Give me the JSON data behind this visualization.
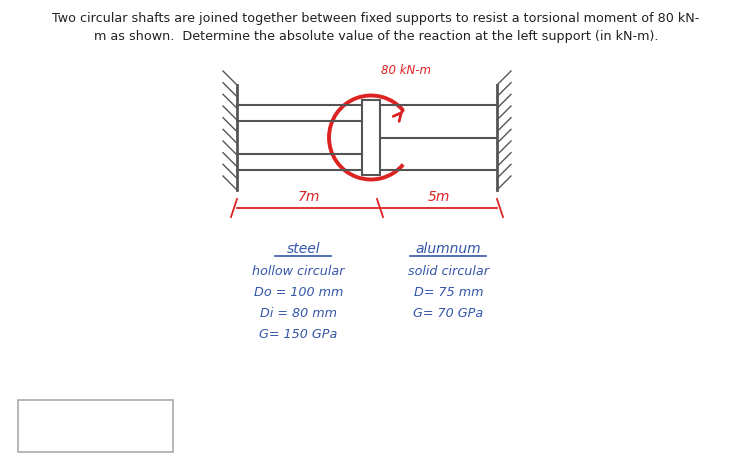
{
  "title_line1": "Two circular shafts are joined together between fixed supports to resist a torsional moment of 80 kN-",
  "title_line2": "m as shown.  Determine the absolute value of the reaction at the left support (in kN-m).",
  "bg_color": "#ffffff",
  "shaft_color": "#555555",
  "moment_color": "#dd2222",
  "blue_color": "#3355aa",
  "title_color": "#222222",
  "moment_label": "80 kN-m",
  "left_length_label": "7m",
  "right_length_label": "5m",
  "steel_header": "steel",
  "steel_line1": "hollow circular",
  "steel_line2": "Do = 100 mm",
  "steel_line3": "Di = 80 mm",
  "steel_line4": "G= 150 GPa",
  "alum_header": "alumnum",
  "alum_line1": "solid circular",
  "alum_line2": "D= 75 mm",
  "alum_line3": "G= 70 GPa"
}
